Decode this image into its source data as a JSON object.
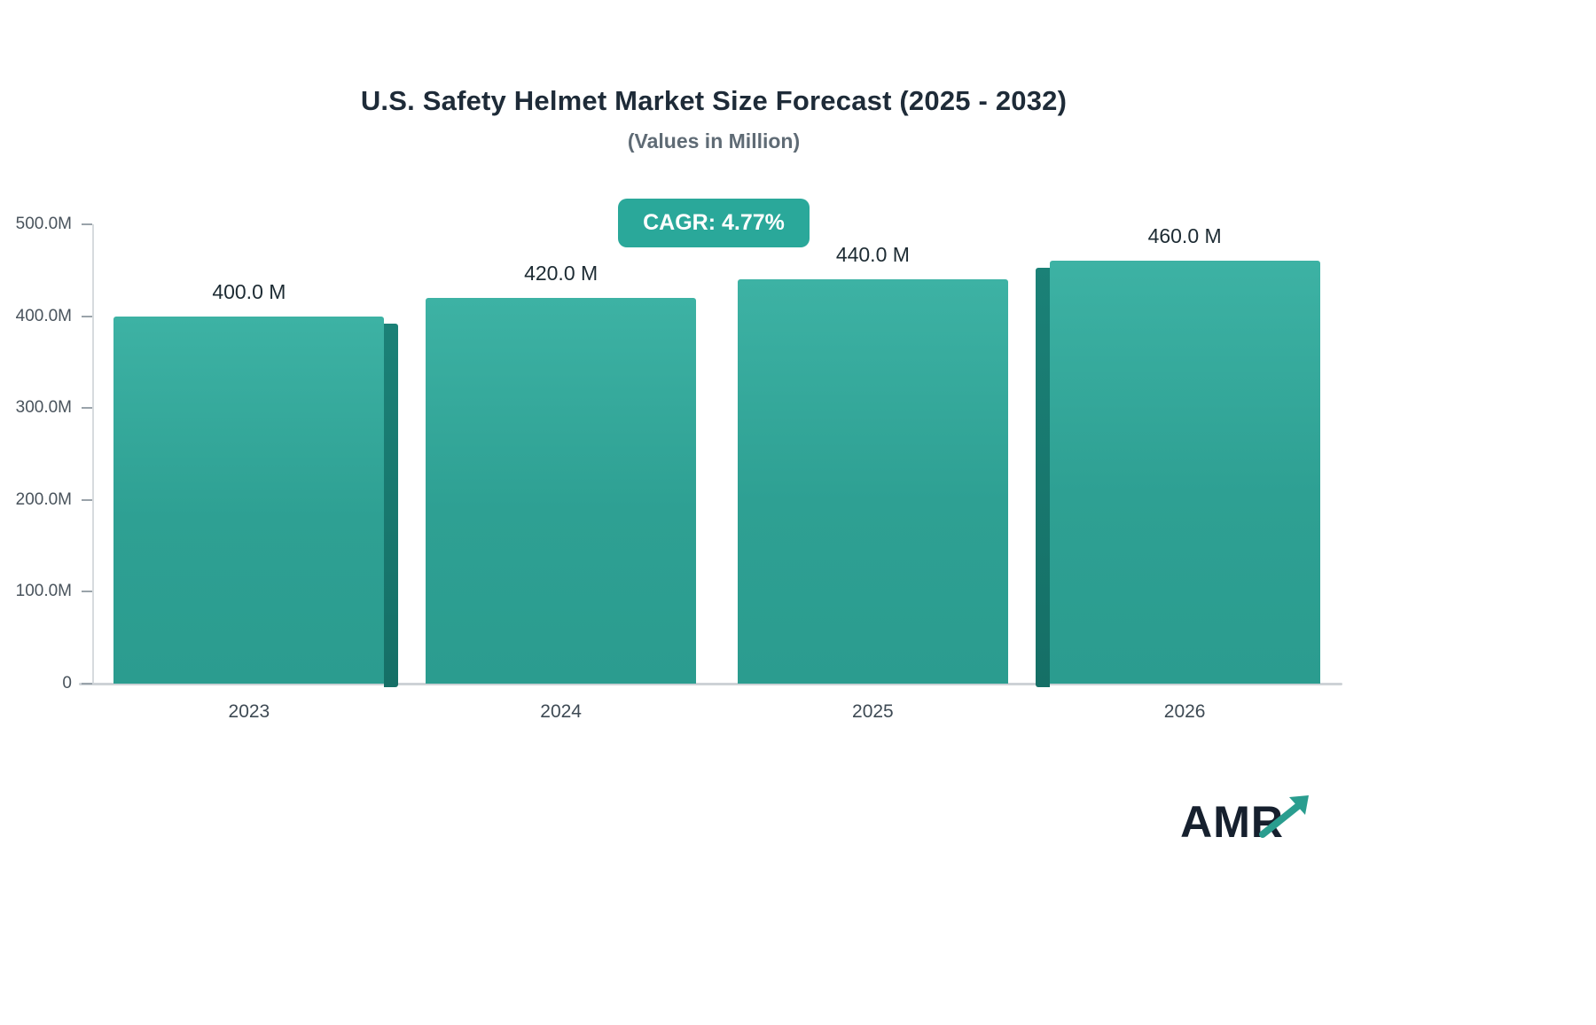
{
  "header": {
    "title": "U.S. Safety Helmet Market Size Forecast (2025 - 2032)",
    "subtitle": "(Values in Million)"
  },
  "cagr_badge": "CAGR: 4.77%",
  "chart_data": {
    "type": "bar",
    "title": "U.S. Safety Helmet Market Size Forecast (2025 - 2032)",
    "subtitle": "(Values in Million)",
    "categories": [
      "2023",
      "2024",
      "2025",
      "2026"
    ],
    "values": [
      400,
      420,
      440,
      460
    ],
    "value_labels": [
      "400.0 M",
      "420.0 M",
      "440.0 M",
      "460.0 M"
    ],
    "unit": "Million USD",
    "ylim": [
      0,
      500
    ],
    "y_ticks": [
      {
        "value": 500,
        "label": "500.0M"
      },
      {
        "value": 400,
        "label": "400.0M"
      },
      {
        "value": 300,
        "label": "300.0M"
      },
      {
        "value": 200,
        "label": "200.0M"
      },
      {
        "value": 100,
        "label": "100.0M"
      },
      {
        "value": 0,
        "label": "0"
      }
    ],
    "grid": false,
    "legend": false,
    "bar_color_top": "#3db2a4",
    "bar_color_bottom": "#2b9c8f",
    "bar_edge_color": "#17756b",
    "cagr": "4.77%"
  },
  "logo": {
    "text": "AMR",
    "accent_color": "#2a9d8f"
  }
}
